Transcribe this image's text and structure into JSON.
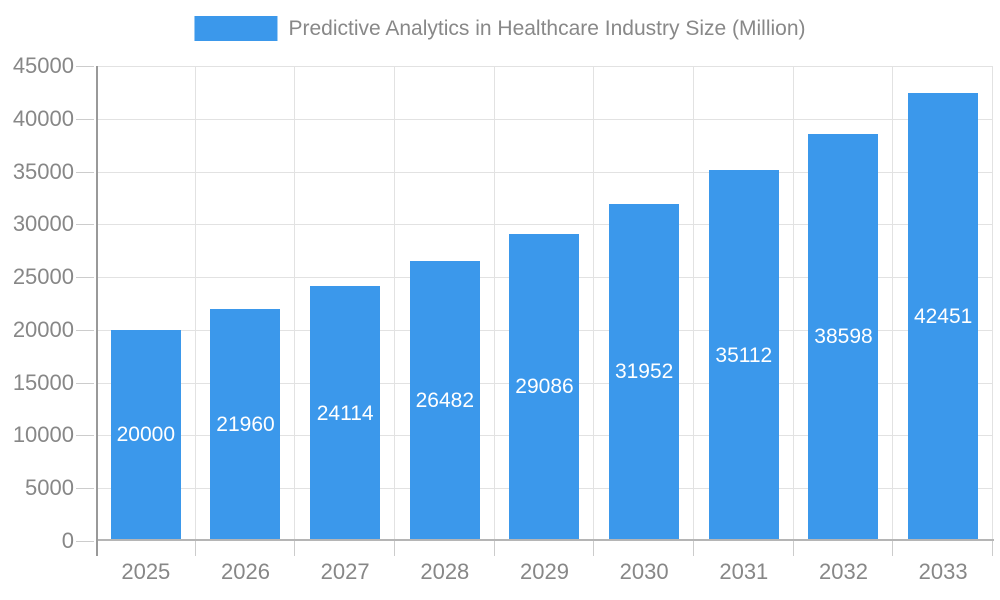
{
  "legend": {
    "label": "Predictive Analytics in Healthcare Industry Size (Million)"
  },
  "colors": {
    "bar": "#3B98EB",
    "axis_text": "#878787",
    "legend_text": "#888888",
    "value_text": "#FFFFFF",
    "grid": "#E2E2E2",
    "y_axis_line": "#999999",
    "x_axis_line": "#B5B5B5",
    "tick": "#CCCCCC"
  },
  "chart_data": {
    "type": "bar",
    "title": "Predictive Analytics in Healthcare Industry Size (Million)",
    "series_name": "Predictive Analytics in Healthcare Industry Size (Million)",
    "categories": [
      "2025",
      "2026",
      "2027",
      "2028",
      "2029",
      "2030",
      "2031",
      "2032",
      "2033"
    ],
    "values": [
      20000,
      21960,
      24114,
      26482,
      29086,
      31952,
      35112,
      38598,
      42451
    ],
    "xlabel": "",
    "ylabel": "",
    "ylim": [
      0,
      45000
    ],
    "yticks": [
      0,
      5000,
      10000,
      15000,
      20000,
      25000,
      30000,
      35000,
      40000,
      45000
    ],
    "grid": true,
    "legend_position": "top-center",
    "value_labels": "inside-middle"
  }
}
